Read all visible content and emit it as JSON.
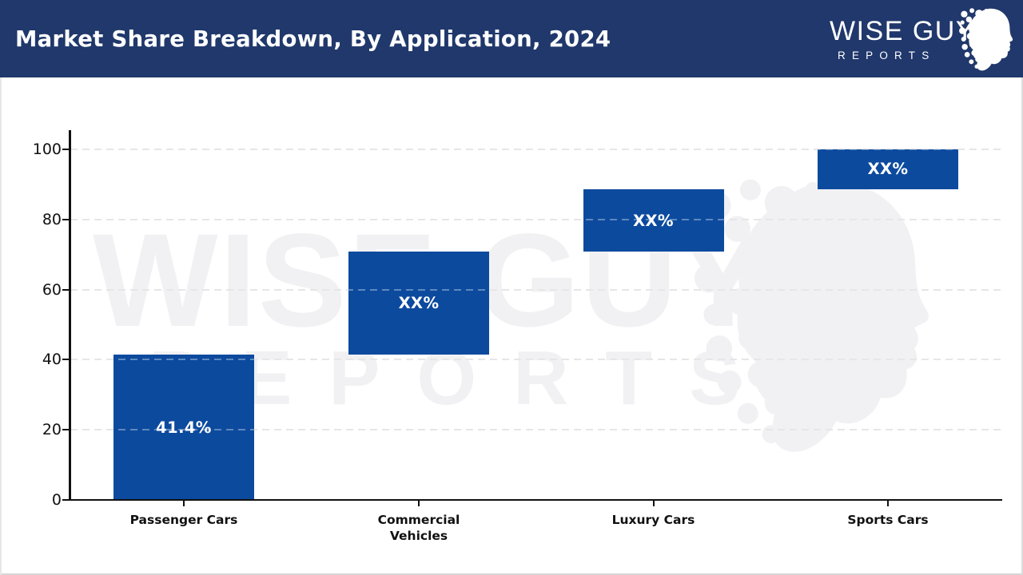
{
  "header": {
    "title": "Market Share Breakdown, By Application, 2024",
    "logo": {
      "line1": "WISE GUY",
      "line2": "REPORTS"
    }
  },
  "watermark": {
    "line1": "WISE GUY",
    "line2": "REPORTS"
  },
  "colors": {
    "header_background": "#20386b",
    "bar": "#0c4a9e",
    "bar_label": "#ffffff",
    "gridline": "#d9d9d9",
    "axis": "#111111",
    "watermark": "#f1f1f3"
  },
  "chart_data": {
    "type": "bar",
    "subtype": "waterfall",
    "title": "Market Share Breakdown, By Application, 2024",
    "xlabel": "",
    "ylabel": "",
    "categories": [
      "Passenger Cars",
      "Commercial Vehicles",
      "Luxury Cars",
      "Sports Cars"
    ],
    "yticks": [
      0,
      20,
      40,
      60,
      80,
      100
    ],
    "ylim": [
      0,
      105.5
    ],
    "grid": "horizontal-dashed",
    "legend": "none",
    "series": [
      {
        "name": "Market Share (%)",
        "segments": [
          {
            "category": "Passenger Cars",
            "start": 0,
            "end": 41.4,
            "value": 41.4,
            "label": "41.4%"
          },
          {
            "category": "Commercial Vehicles",
            "start": 41.4,
            "end": 70.8,
            "value": 29.4,
            "label": "XX%"
          },
          {
            "category": "Luxury Cars",
            "start": 70.8,
            "end": 88.7,
            "value": 17.9,
            "label": "XX%"
          },
          {
            "category": "Sports Cars",
            "start": 88.7,
            "end": 100.0,
            "value": 11.3,
            "label": "XX%"
          }
        ]
      }
    ]
  }
}
